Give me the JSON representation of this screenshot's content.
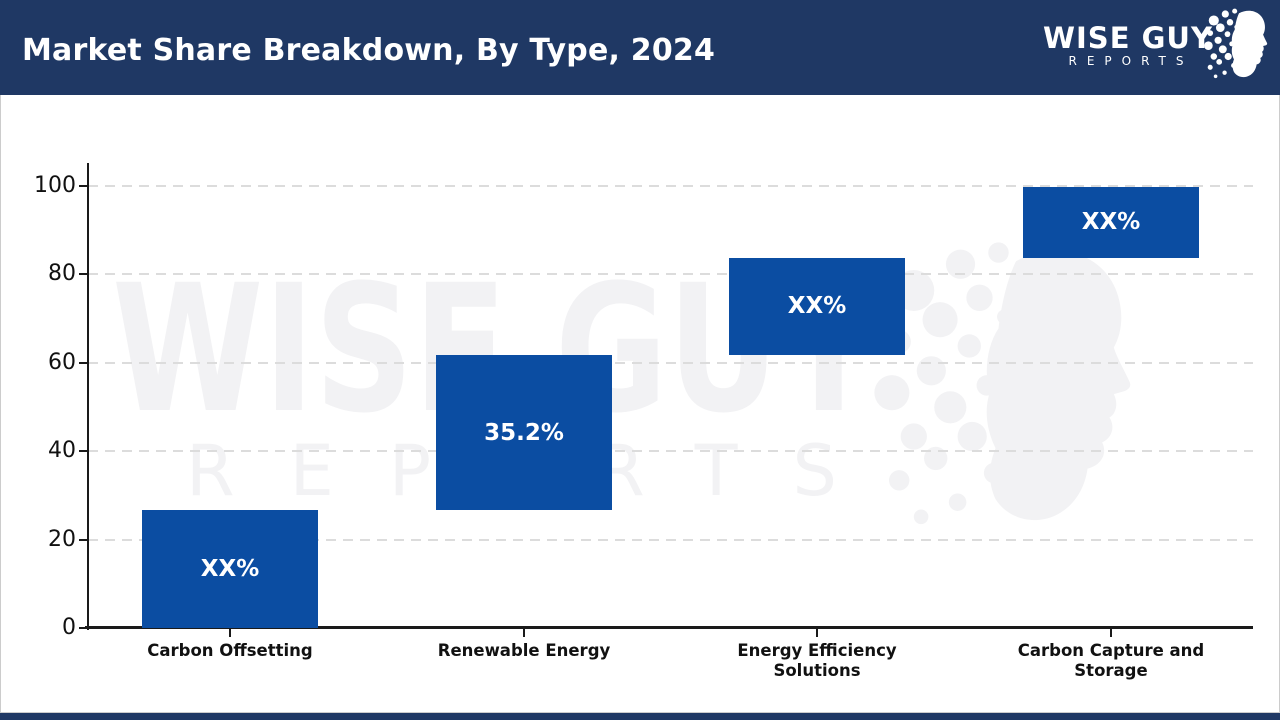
{
  "header": {
    "title": "Market Share Breakdown, By Type, 2024",
    "logo": {
      "name": "WISE GUY",
      "subtitle": "REPORTS"
    }
  },
  "watermark": {
    "name": "WISE GUY",
    "subtitle": "REPORTS"
  },
  "chart_data": {
    "type": "bar",
    "subtype": "waterfall-floating-segments",
    "title": "Market Share Breakdown, By Type, 2024",
    "categories": [
      "Carbon Offsetting",
      "Renewable Energy",
      "Energy Efficiency Solutions",
      "Carbon Capture and Storage"
    ],
    "segments": [
      {
        "category": "Carbon Offsetting",
        "start": 0,
        "end": 26.6,
        "value": 26.6,
        "label": "XX%"
      },
      {
        "category": "Renewable Energy",
        "start": 26.6,
        "end": 61.8,
        "value": 35.2,
        "label": "35.2%"
      },
      {
        "category": "Energy Efficiency Solutions",
        "start": 61.8,
        "end": 83.7,
        "value": 21.9,
        "label": "XX%"
      },
      {
        "category": "Carbon Capture and Storage",
        "start": 83.7,
        "end": 99.8,
        "value": 16.1,
        "label": "XX%"
      }
    ],
    "xlabel": "",
    "ylabel": "",
    "yticks": [
      0,
      20,
      40,
      60,
      80,
      100
    ],
    "ylim": [
      0,
      105
    ],
    "grid": "horizontal-dashed",
    "legend": "none"
  },
  "colors": {
    "header_bg": "#1F3864",
    "footer_bg": "#1F3864",
    "bar": "#0B4DA2",
    "bar_label": "#FFFFFF",
    "grid": "#DCDCDC",
    "axis": "#1A1A1A",
    "text": "#111111",
    "watermark": "#F2F2F4",
    "page_bg": "#FFFFFF"
  }
}
